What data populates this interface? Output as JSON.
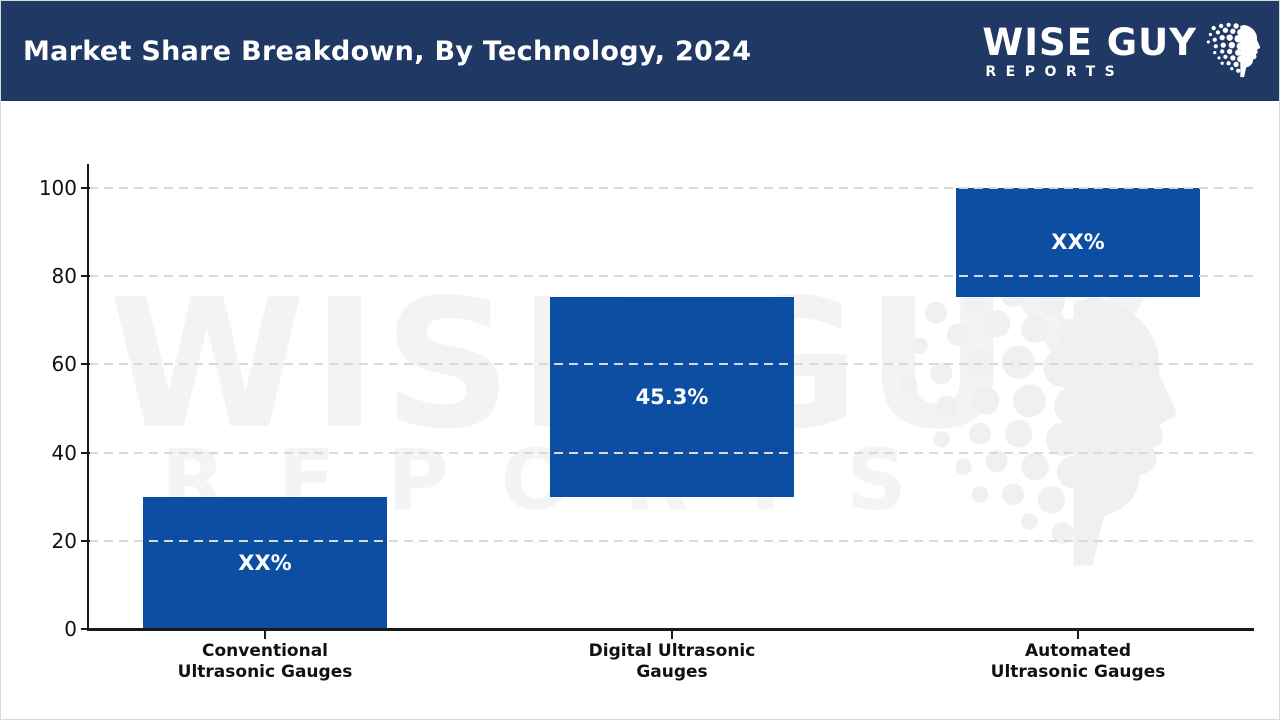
{
  "header": {
    "title": "Market Share Breakdown, By Technology, 2024"
  },
  "logo": {
    "top": "WISE GUY",
    "bottom": "REPORTS"
  },
  "watermark": {
    "big": "WISE GUY",
    "sub": "REPORTS"
  },
  "colors": {
    "header_bg": "#203864",
    "bar": "#0b4ea2",
    "grid": "#d9d9d9",
    "axis": "#1a1a1a",
    "bar_label": "#ffffff",
    "watermark": "#f3f3f5"
  },
  "chart_data": {
    "type": "bar",
    "variant": "waterfall",
    "title": "Market Share Breakdown, By Technology, 2024",
    "xlabel": "",
    "ylabel": "",
    "ylim": [
      0,
      100
    ],
    "yticks": [
      0,
      20,
      40,
      60,
      80,
      100
    ],
    "grid": "horizontal-dashed",
    "legend": "none",
    "categories": [
      [
        "Conventional",
        "Ultrasonic Gauges"
      ],
      [
        "Digital Ultrasonic",
        "Gauges"
      ],
      [
        "Automated",
        "Ultrasonic Gauges"
      ]
    ],
    "bars": [
      {
        "category": "Conventional Ultrasonic Gauges",
        "start": 0,
        "end": 30,
        "value_label": "XX%"
      },
      {
        "category": "Digital Ultrasonic Gauges",
        "start": 30,
        "end": 75.3,
        "value_label": "45.3%"
      },
      {
        "category": "Automated Ultrasonic Gauges",
        "start": 75.3,
        "end": 100,
        "value_label": "XX%"
      }
    ]
  }
}
